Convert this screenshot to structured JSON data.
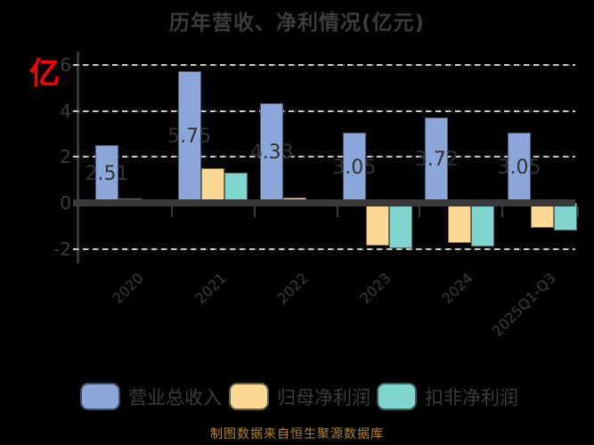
{
  "title": "历年营收、净利情况(亿元)",
  "unit_label": "亿",
  "footer": "制图数据来自恒生聚源数据库",
  "colors": {
    "background": "#000000",
    "revenue": "#8BA7D9",
    "net_profit": "#FBD893",
    "deducted_net_profit": "#7ED6CF",
    "grid": "#c9c9c9",
    "axis": "#3a3a3a",
    "text": "#3c3c3c",
    "value_label": "#333333",
    "unit": "#fe0000",
    "footer": "#b8860b"
  },
  "legend": [
    {
      "label": "营业总收入",
      "color": "#8BA7D9"
    },
    {
      "label": "归母净利润",
      "color": "#FBD893"
    },
    {
      "label": "扣非净利润",
      "color": "#7ED6CF"
    }
  ],
  "chart_data": {
    "type": "bar",
    "title": "历年营收、净利情况(亿元)",
    "unit": "亿",
    "categories": [
      "2020",
      "2021",
      "2022",
      "2023",
      "2024",
      "2025Q1-Q3"
    ],
    "series": [
      {
        "key": "revenue",
        "name": "营业总收入",
        "color": "#8BA7D9",
        "values": [
          2.51,
          5.75,
          4.33,
          3.05,
          3.72,
          3.05
        ],
        "labels": [
          "2.51",
          "5.75",
          "4.33",
          "3.05",
          "3.72",
          "3.05"
        ]
      },
      {
        "key": "net-profit",
        "name": "归母净利润",
        "color": "#FBD893",
        "values": [
          0.18,
          1.5,
          0.25,
          -1.85,
          -1.75,
          -1.1
        ]
      },
      {
        "key": "deducted-net-profit",
        "name": "扣非净利润",
        "color": "#7ED6CF",
        "values": [
          0.14,
          1.32,
          0.1,
          -1.97,
          -1.9,
          -1.22
        ]
      }
    ],
    "y_ticks": [
      6,
      4,
      2,
      0,
      -2
    ],
    "ylim": [
      -2.6,
      6.6
    ],
    "grid": "dashed-horizontal",
    "legend_position": "bottom",
    "x_tick_rotation": 45
  }
}
